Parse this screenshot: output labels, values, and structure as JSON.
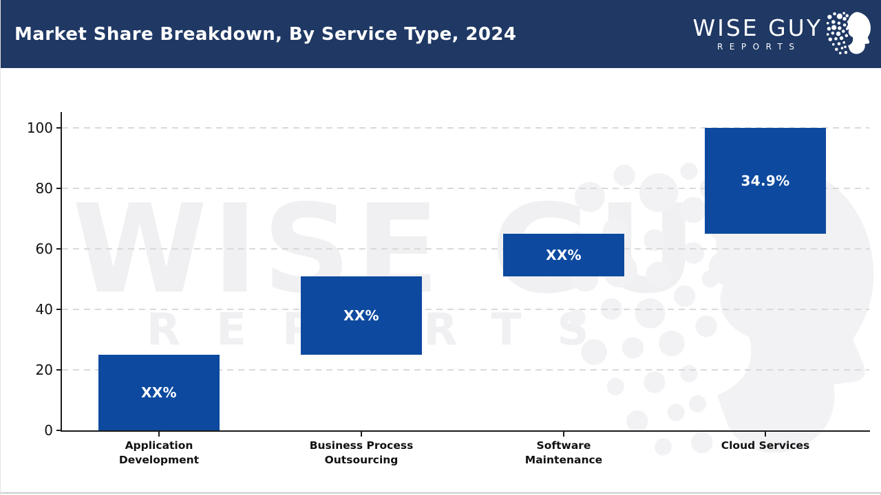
{
  "header": {
    "title": "Market Share Breakdown, By Service Type, 2024",
    "logo": {
      "wordmark": "WISE GUY",
      "subtext": "REPORTS",
      "face_icon": "face-profile-dots"
    },
    "colors": {
      "background": "#1f3864",
      "text": "#ffffff"
    }
  },
  "watermark": {
    "wordmark": "WISE GUY",
    "subtext": "REPORTS",
    "face_icon": "face-profile-dots",
    "color": "#f0f0f2"
  },
  "chart_data": {
    "type": "bar",
    "subtype": "floating-segment-waterfall",
    "title": "Market Share Breakdown, By Service Type, 2024",
    "categories": [
      "Application\nDevelopment",
      "Business Process\nOutsourcing",
      "Software\nMaintenance",
      "Cloud Services"
    ],
    "bars": [
      {
        "category": "Application Development",
        "base": 0,
        "top": 25.1,
        "label": "XX%"
      },
      {
        "category": "Business Process Outsourcing",
        "base": 25.1,
        "top": 51,
        "label": "XX%"
      },
      {
        "category": "Software Maintenance",
        "base": 51,
        "top": 65.1,
        "label": "XX%"
      },
      {
        "category": "Cloud Services",
        "base": 65.1,
        "top": 100,
        "label": "34.9%"
      }
    ],
    "xlabel": "",
    "ylabel": "",
    "ylim": [
      0,
      100
    ],
    "yticks": [
      0,
      20,
      40,
      60,
      80,
      100
    ],
    "grid": {
      "horizontal": true,
      "style": "dashed",
      "color": "#d9d9d9"
    },
    "legend": null,
    "bar_color": "#0d4a9f",
    "bar_label_color": "#ffffff",
    "axis_color": "#1a1a1a"
  }
}
